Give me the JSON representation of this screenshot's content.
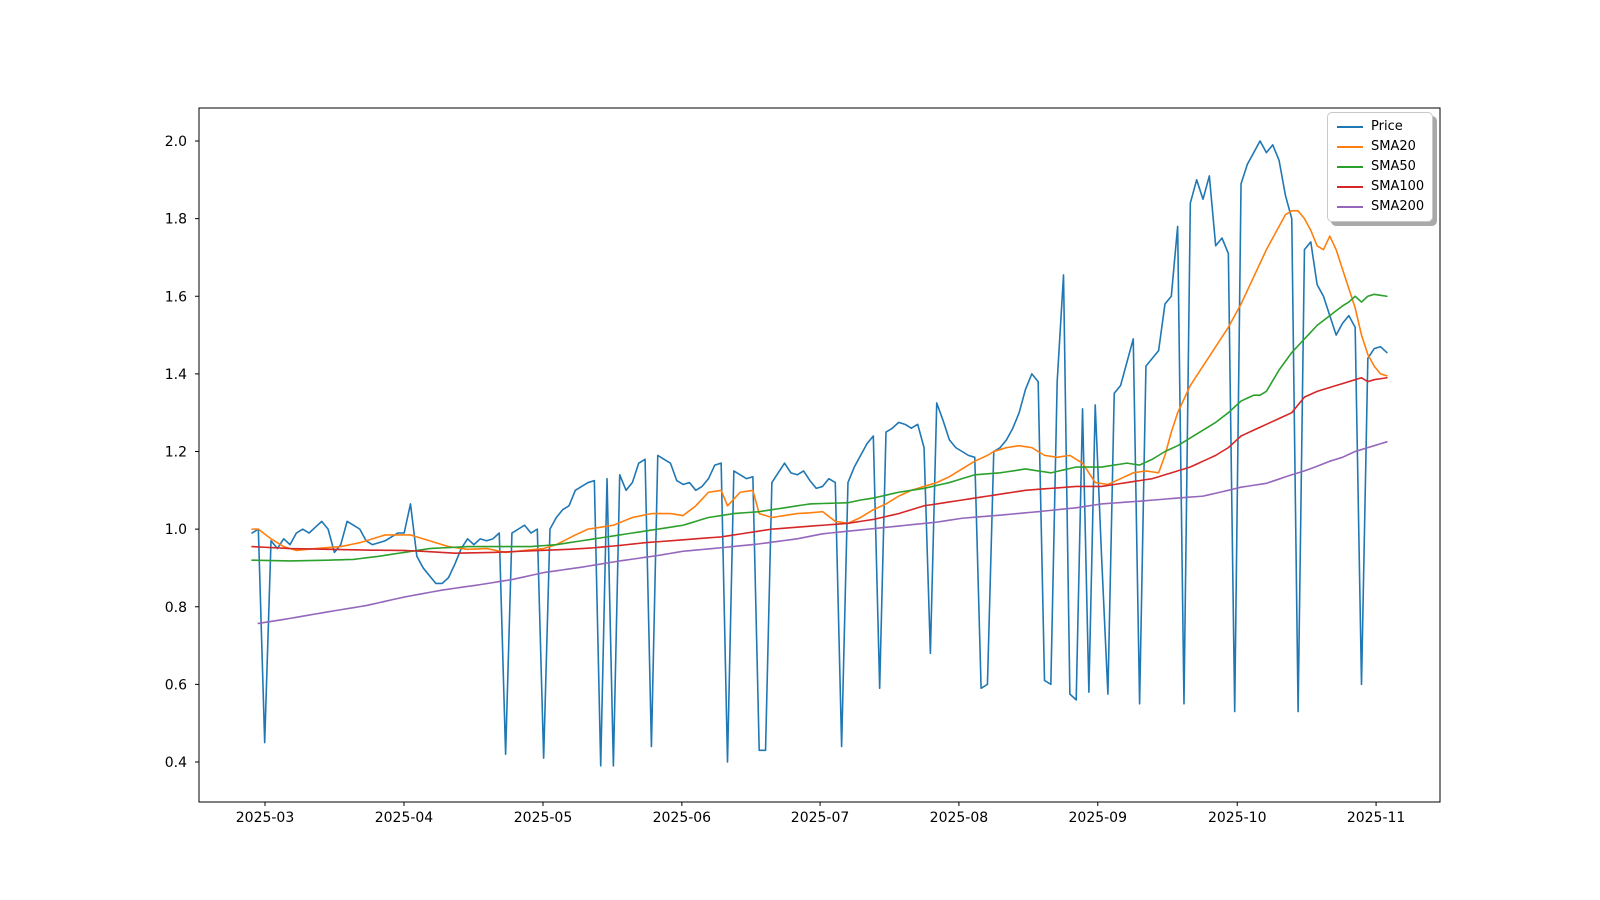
{
  "figure": {
    "background": "#ffffff"
  },
  "chart_data": {
    "type": "line",
    "title": "",
    "grid": false,
    "x_axis": {
      "tick_labels": [
        "2025-03",
        "2025-04",
        "2025-05",
        "2025-06",
        "2025-07",
        "2025-08",
        "2025-09",
        "2025-10",
        "2025-11"
      ],
      "tick_positions_day": [
        2.05,
        23.97,
        45.9,
        67.8,
        89.6,
        111.5,
        133.4,
        155.4,
        177.3
      ]
    },
    "y_axis": {
      "tick_labels": [
        "0.4",
        "0.6",
        "0.8",
        "1.0",
        "1.2",
        "1.4",
        "1.6",
        "1.8",
        "2.0"
      ],
      "tick_values": [
        0.4,
        0.6,
        0.8,
        1.0,
        1.2,
        1.4,
        1.6,
        1.8,
        2.0
      ],
      "range": [
        0.3,
        2.09
      ]
    },
    "legend": {
      "position": "upper right",
      "entries": [
        "Price",
        "SMA20",
        "SMA50",
        "SMA100",
        "SMA200"
      ]
    },
    "series": [
      {
        "name": "Price",
        "color": "#1f77b4",
        "x_unit": "day_index",
        "values": [
          0.99,
          1.0,
          0.45,
          0.97,
          0.95,
          0.975,
          0.96,
          0.99,
          1.0,
          0.99,
          1.005,
          1.02,
          1.0,
          0.94,
          0.96,
          1.02,
          1.01,
          1.0,
          0.97,
          0.96,
          0.965,
          0.97,
          0.98,
          0.99,
          0.99,
          1.065,
          0.93,
          0.9,
          0.88,
          0.86,
          0.86,
          0.875,
          0.91,
          0.95,
          0.975,
          0.96,
          0.975,
          0.97,
          0.975,
          0.99,
          0.42,
          0.99,
          1.0,
          1.01,
          0.99,
          1.0,
          0.41,
          1.0,
          1.03,
          1.05,
          1.06,
          1.1,
          1.11,
          1.12,
          1.125,
          0.39,
          1.13,
          0.39,
          1.14,
          1.1,
          1.12,
          1.17,
          1.18,
          0.44,
          1.19,
          1.18,
          1.17,
          1.125,
          1.115,
          1.12,
          1.1,
          1.11,
          1.13,
          1.165,
          1.17,
          0.4,
          1.15,
          1.14,
          1.13,
          1.135,
          0.43,
          0.43,
          1.12,
          1.145,
          1.17,
          1.145,
          1.14,
          1.15,
          1.125,
          1.105,
          1.11,
          1.13,
          1.12,
          0.44,
          1.12,
          1.16,
          1.19,
          1.22,
          1.24,
          0.59,
          1.25,
          1.26,
          1.275,
          1.27,
          1.26,
          1.27,
          1.21,
          0.68,
          1.325,
          1.28,
          1.23,
          1.21,
          1.2,
          1.19,
          1.185,
          0.59,
          0.6,
          1.2,
          1.21,
          1.23,
          1.26,
          1.3,
          1.36,
          1.4,
          1.38,
          0.61,
          0.6,
          1.38,
          1.655,
          0.575,
          0.56,
          1.31,
          0.58,
          1.32,
          0.93,
          0.575,
          1.35,
          1.37,
          1.43,
          1.49,
          0.55,
          1.42,
          1.44,
          1.46,
          1.58,
          1.6,
          1.78,
          0.55,
          1.84,
          1.9,
          1.85,
          1.91,
          1.73,
          1.75,
          1.71,
          0.53,
          1.89,
          1.94,
          1.97,
          2.0,
          1.97,
          1.99,
          1.95,
          1.86,
          1.8,
          0.53,
          1.72,
          1.74,
          1.63,
          1.6,
          1.55,
          1.5,
          1.53,
          1.55,
          1.52,
          0.6,
          1.44,
          1.465,
          1.47,
          1.455
        ]
      },
      {
        "name": "SMA20",
        "color": "#ff7f0e",
        "x_unit": "day_index",
        "points": [
          [
            0,
            1.0
          ],
          [
            1,
            1.0
          ],
          [
            3,
            0.975
          ],
          [
            5,
            0.955
          ],
          [
            7,
            0.945
          ],
          [
            10,
            0.95
          ],
          [
            14,
            0.955
          ],
          [
            17,
            0.965
          ],
          [
            19,
            0.975
          ],
          [
            21,
            0.985
          ],
          [
            25,
            0.985
          ],
          [
            28,
            0.97
          ],
          [
            31,
            0.955
          ],
          [
            34,
            0.948
          ],
          [
            37,
            0.95
          ],
          [
            40,
            0.94
          ],
          [
            43,
            0.945
          ],
          [
            46,
            0.95
          ],
          [
            48,
            0.96
          ],
          [
            51,
            0.985
          ],
          [
            53,
            1.0
          ],
          [
            55,
            1.005
          ],
          [
            57,
            1.01
          ],
          [
            60,
            1.03
          ],
          [
            63,
            1.04
          ],
          [
            66,
            1.04
          ],
          [
            68,
            1.035
          ],
          [
            70,
            1.06
          ],
          [
            72,
            1.095
          ],
          [
            74,
            1.1
          ],
          [
            75,
            1.06
          ],
          [
            77,
            1.095
          ],
          [
            79,
            1.1
          ],
          [
            80,
            1.04
          ],
          [
            82,
            1.03
          ],
          [
            84,
            1.035
          ],
          [
            86,
            1.04
          ],
          [
            88,
            1.042
          ],
          [
            90,
            1.045
          ],
          [
            92,
            1.02
          ],
          [
            94,
            1.015
          ],
          [
            96,
            1.03
          ],
          [
            98,
            1.05
          ],
          [
            100,
            1.065
          ],
          [
            102,
            1.085
          ],
          [
            104,
            1.1
          ],
          [
            106,
            1.11
          ],
          [
            108,
            1.12
          ],
          [
            110,
            1.135
          ],
          [
            112,
            1.155
          ],
          [
            114,
            1.175
          ],
          [
            116,
            1.19
          ],
          [
            117,
            1.2
          ],
          [
            119,
            1.21
          ],
          [
            121,
            1.215
          ],
          [
            123,
            1.21
          ],
          [
            125,
            1.19
          ],
          [
            127,
            1.185
          ],
          [
            129,
            1.19
          ],
          [
            131,
            1.17
          ],
          [
            133,
            1.12
          ],
          [
            135,
            1.115
          ],
          [
            137,
            1.13
          ],
          [
            139,
            1.145
          ],
          [
            141,
            1.15
          ],
          [
            143,
            1.145
          ],
          [
            144,
            1.19
          ],
          [
            145,
            1.25
          ],
          [
            146,
            1.3
          ],
          [
            148,
            1.37
          ],
          [
            150,
            1.42
          ],
          [
            152,
            1.47
          ],
          [
            154,
            1.52
          ],
          [
            156,
            1.58
          ],
          [
            158,
            1.65
          ],
          [
            160,
            1.72
          ],
          [
            162,
            1.78
          ],
          [
            163,
            1.81
          ],
          [
            164,
            1.82
          ],
          [
            165,
            1.82
          ],
          [
            166,
            1.8
          ],
          [
            167,
            1.77
          ],
          [
            168,
            1.73
          ],
          [
            169,
            1.72
          ],
          [
            170,
            1.755
          ],
          [
            171,
            1.72
          ],
          [
            172,
            1.67
          ],
          [
            173,
            1.62
          ],
          [
            174,
            1.57
          ],
          [
            175,
            1.5
          ],
          [
            176,
            1.45
          ],
          [
            177,
            1.42
          ],
          [
            178,
            1.4
          ],
          [
            179,
            1.395
          ]
        ]
      },
      {
        "name": "SMA50",
        "color": "#2ca02c",
        "x_unit": "day_index",
        "points": [
          [
            0,
            0.92
          ],
          [
            6,
            0.918
          ],
          [
            12,
            0.92
          ],
          [
            16,
            0.922
          ],
          [
            20,
            0.93
          ],
          [
            24,
            0.94
          ],
          [
            28,
            0.95
          ],
          [
            34,
            0.955
          ],
          [
            44,
            0.955
          ],
          [
            48,
            0.96
          ],
          [
            52,
            0.97
          ],
          [
            56,
            0.98
          ],
          [
            60,
            0.99
          ],
          [
            64,
            1.0
          ],
          [
            68,
            1.01
          ],
          [
            72,
            1.03
          ],
          [
            76,
            1.04
          ],
          [
            80,
            1.045
          ],
          [
            84,
            1.055
          ],
          [
            88,
            1.065
          ],
          [
            94,
            1.068
          ],
          [
            96,
            1.075
          ],
          [
            98,
            1.08
          ],
          [
            102,
            1.095
          ],
          [
            106,
            1.105
          ],
          [
            110,
            1.12
          ],
          [
            114,
            1.14
          ],
          [
            118,
            1.145
          ],
          [
            122,
            1.155
          ],
          [
            126,
            1.145
          ],
          [
            130,
            1.16
          ],
          [
            134,
            1.16
          ],
          [
            138,
            1.17
          ],
          [
            140,
            1.165
          ],
          [
            142,
            1.18
          ],
          [
            144,
            1.2
          ],
          [
            146,
            1.215
          ],
          [
            148,
            1.235
          ],
          [
            150,
            1.255
          ],
          [
            152,
            1.275
          ],
          [
            154,
            1.3
          ],
          [
            156,
            1.33
          ],
          [
            158,
            1.345
          ],
          [
            159,
            1.345
          ],
          [
            160,
            1.355
          ],
          [
            162,
            1.41
          ],
          [
            164,
            1.455
          ],
          [
            166,
            1.49
          ],
          [
            168,
            1.525
          ],
          [
            170,
            1.55
          ],
          [
            172,
            1.575
          ],
          [
            173,
            1.585
          ],
          [
            174,
            1.6
          ],
          [
            175,
            1.585
          ],
          [
            176,
            1.6
          ],
          [
            177,
            1.605
          ],
          [
            179,
            1.6
          ]
        ]
      },
      {
        "name": "SMA100",
        "color": "#d62728",
        "x_unit": "day_index",
        "points": [
          [
            0,
            0.955
          ],
          [
            6,
            0.95
          ],
          [
            12,
            0.948
          ],
          [
            18,
            0.946
          ],
          [
            24,
            0.945
          ],
          [
            28,
            0.942
          ],
          [
            32,
            0.938
          ],
          [
            38,
            0.94
          ],
          [
            44,
            0.944
          ],
          [
            50,
            0.948
          ],
          [
            54,
            0.952
          ],
          [
            58,
            0.958
          ],
          [
            62,
            0.965
          ],
          [
            66,
            0.97
          ],
          [
            70,
            0.975
          ],
          [
            74,
            0.98
          ],
          [
            78,
            0.99
          ],
          [
            82,
            1.0
          ],
          [
            86,
            1.005
          ],
          [
            90,
            1.01
          ],
          [
            94,
            1.015
          ],
          [
            98,
            1.025
          ],
          [
            102,
            1.04
          ],
          [
            106,
            1.06
          ],
          [
            110,
            1.07
          ],
          [
            114,
            1.08
          ],
          [
            118,
            1.09
          ],
          [
            122,
            1.1
          ],
          [
            126,
            1.105
          ],
          [
            130,
            1.11
          ],
          [
            134,
            1.11
          ],
          [
            138,
            1.12
          ],
          [
            142,
            1.13
          ],
          [
            144,
            1.14
          ],
          [
            146,
            1.15
          ],
          [
            148,
            1.16
          ],
          [
            150,
            1.175
          ],
          [
            152,
            1.19
          ],
          [
            154,
            1.21
          ],
          [
            156,
            1.24
          ],
          [
            158,
            1.255
          ],
          [
            160,
            1.27
          ],
          [
            162,
            1.285
          ],
          [
            164,
            1.3
          ],
          [
            166,
            1.34
          ],
          [
            168,
            1.355
          ],
          [
            170,
            1.365
          ],
          [
            172,
            1.375
          ],
          [
            174,
            1.385
          ],
          [
            175,
            1.39
          ],
          [
            176,
            1.38
          ],
          [
            177,
            1.385
          ],
          [
            179,
            1.39
          ]
        ]
      },
      {
        "name": "SMA200",
        "color": "#9467bd",
        "x_unit": "day_index",
        "points": [
          [
            1,
            0.757
          ],
          [
            6,
            0.77
          ],
          [
            12,
            0.787
          ],
          [
            18,
            0.803
          ],
          [
            24,
            0.825
          ],
          [
            30,
            0.843
          ],
          [
            36,
            0.857
          ],
          [
            41,
            0.87
          ],
          [
            46,
            0.888
          ],
          [
            52,
            0.902
          ],
          [
            58,
            0.918
          ],
          [
            64,
            0.932
          ],
          [
            68,
            0.943
          ],
          [
            74,
            0.952
          ],
          [
            80,
            0.962
          ],
          [
            86,
            0.975
          ],
          [
            90,
            0.988
          ],
          [
            96,
            0.998
          ],
          [
            102,
            1.008
          ],
          [
            108,
            1.018
          ],
          [
            112,
            1.028
          ],
          [
            118,
            1.036
          ],
          [
            124,
            1.045
          ],
          [
            130,
            1.055
          ],
          [
            134,
            1.065
          ],
          [
            140,
            1.072
          ],
          [
            146,
            1.08
          ],
          [
            150,
            1.085
          ],
          [
            154,
            1.1
          ],
          [
            156,
            1.108
          ],
          [
            160,
            1.118
          ],
          [
            164,
            1.14
          ],
          [
            166,
            1.15
          ],
          [
            168,
            1.162
          ],
          [
            170,
            1.175
          ],
          [
            172,
            1.185
          ],
          [
            174,
            1.2
          ],
          [
            176,
            1.21
          ],
          [
            178,
            1.22
          ],
          [
            179,
            1.225
          ]
        ]
      }
    ]
  }
}
